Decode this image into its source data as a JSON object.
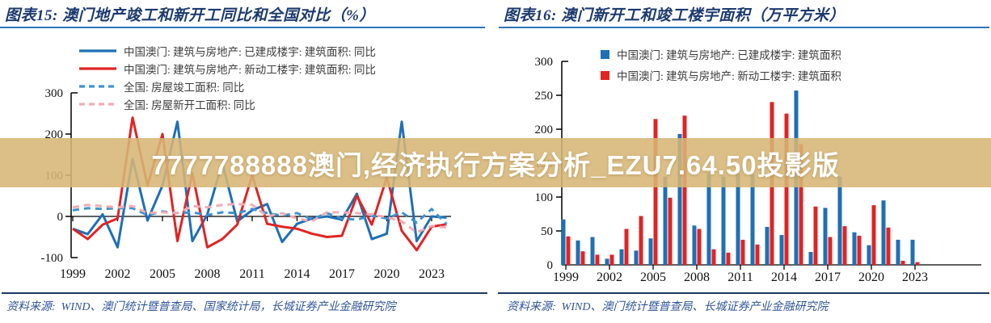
{
  "watermark": {
    "text": "7777788888澳门,经济执行方案分析_EZU7.64.50投影版",
    "band_color": "#D6B676",
    "text_color": "#FFFFFF"
  },
  "left_panel": {
    "title": "图表15:  澳门地产竣工和新开工同比和全国对比（%）",
    "source_label": "资料来源:",
    "source": "WIND、澳门统计暨普查局、国家统计局，长城证券产业金融研究院"
  },
  "right_panel": {
    "title": "图表16:  澳门新开工和竣工楼宇面积（万平方米）",
    "source_label": "资料来源:",
    "source": "WIND、澳门统计暨普查局、长城证券产业金融研究院"
  },
  "colors": {
    "macau_completed": "#1F6FB5",
    "macau_new_start": "#E02424",
    "national_completed": "#3E92D0",
    "national_new_start": "#F2ABB3",
    "title_navy": "#1C3A6E",
    "rule_blue": "#2E74B5",
    "rule_dark": "#1F3864",
    "source_blue": "#2F5597",
    "watermark_band": "#D6B676"
  },
  "chart_data": [
    {
      "type": "line",
      "title": "澳门地产竣工和新开工同比和全国对比（%）",
      "x": [
        1999,
        2000,
        2001,
        2002,
        2003,
        2004,
        2005,
        2006,
        2007,
        2008,
        2009,
        2010,
        2011,
        2012,
        2013,
        2014,
        2015,
        2016,
        2017,
        2018,
        2019,
        2020,
        2021,
        2022,
        2023,
        2024
      ],
      "x_ticks": [
        1999,
        2002,
        2005,
        2008,
        2011,
        2014,
        2017,
        2020,
        2023
      ],
      "ylim": [
        -100,
        300
      ],
      "yticks": [
        300,
        200,
        100,
        0,
        -100
      ],
      "grid": false,
      "legend_position": "top-left",
      "series": [
        {
          "name": "中国澳门: 建筑与房地产: 已建成楼宇: 建筑面积: 同比",
          "color": "#1F6FB5",
          "style": "solid",
          "values": [
            -30,
            -43,
            5,
            -75,
            140,
            -10,
            75,
            230,
            -60,
            5,
            130,
            -12,
            15,
            30,
            -62,
            -18,
            -5,
            0,
            -8,
            55,
            -55,
            -42,
            230,
            -60,
            0,
            -3
          ]
        },
        {
          "name": "中国澳门: 建筑与房地产: 新动工楼宇: 建筑面积: 同比",
          "color": "#E02424",
          "style": "solid",
          "values": [
            -30,
            -55,
            -20,
            -5,
            240,
            75,
            200,
            -60,
            105,
            -75,
            -55,
            -20,
            100,
            -18,
            -25,
            -30,
            -42,
            -50,
            -47,
            50,
            -20,
            95,
            -35,
            -82,
            -25,
            -19
          ]
        },
        {
          "name": "全国: 房屋竣工面积: 同比",
          "color": "#3E92D0",
          "style": "dashed",
          "values": [
            15,
            20,
            18,
            20,
            20,
            3,
            12,
            8,
            10,
            3,
            10,
            8,
            18,
            8,
            2,
            8,
            -7,
            8,
            -5,
            -8,
            2,
            -5,
            10,
            -15,
            18,
            -19
          ]
        },
        {
          "name": "全国: 房屋新开工面积: 同比",
          "color": "#F2ABB3",
          "style": "dashed",
          "values": [
            22,
            28,
            25,
            22,
            25,
            8,
            10,
            8,
            25,
            22,
            28,
            30,
            28,
            0,
            8,
            -5,
            -12,
            10,
            10,
            8,
            5,
            -2,
            -12,
            -39,
            -23,
            -27
          ]
        }
      ]
    },
    {
      "type": "bar",
      "title": "澳门新开工和竣工楼宇面积（万平方米）",
      "x": [
        1999,
        2000,
        2001,
        2002,
        2003,
        2004,
        2005,
        2006,
        2007,
        2008,
        2009,
        2010,
        2011,
        2012,
        2013,
        2014,
        2015,
        2016,
        2017,
        2018,
        2019,
        2020,
        2021,
        2022,
        2023
      ],
      "x_ticks": [
        1999,
        2002,
        2005,
        2008,
        2011,
        2014,
        2017,
        2020,
        2023
      ],
      "ylim": [
        0,
        300
      ],
      "yticks": [
        0,
        50,
        100,
        150,
        200,
        250,
        300
      ],
      "grid": false,
      "legend_position": "top",
      "series": [
        {
          "name": "中国澳门: 建筑与房地产: 已建成楼宇: 建筑面积",
          "color": "#1F6FB5",
          "values": [
            67,
            36,
            41,
            9,
            23,
            21,
            39,
            130,
            193,
            58,
            135,
            130,
            135,
            133,
            56,
            44,
            257,
            19,
            84,
            130,
            48,
            29,
            95,
            37,
            37
          ]
        },
        {
          "name": "中国澳门: 建筑与房地产: 新动工楼宇: 建筑面积",
          "color": "#E02424",
          "values": [
            42,
            20,
            15,
            15,
            53,
            72,
            215,
            99,
            220,
            53,
            23,
            18,
            37,
            30,
            240,
            223,
            178,
            86,
            41,
            57,
            43,
            88,
            55,
            6,
            4
          ]
        }
      ]
    }
  ]
}
